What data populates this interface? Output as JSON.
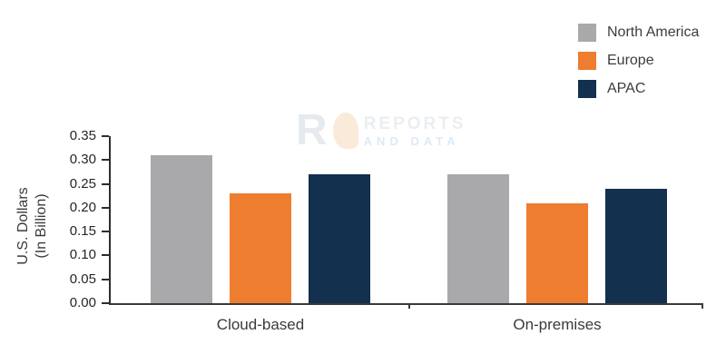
{
  "chart_data": {
    "type": "bar",
    "categories": [
      "Cloud-based",
      "On-premises"
    ],
    "series": [
      {
        "name": "North America",
        "color": "#a9a9ab",
        "values": [
          0.31,
          0.27
        ]
      },
      {
        "name": "Europe",
        "color": "#ee7d2f",
        "values": [
          0.23,
          0.21
        ]
      },
      {
        "name": "APAC",
        "color": "#13304e",
        "values": [
          0.27,
          0.24
        ]
      }
    ],
    "title": "",
    "xlabel": "",
    "ylabel_lines": [
      "U.S. Dollars",
      "(In Billion)"
    ],
    "ylim": [
      0,
      0.35
    ],
    "ytick_step": 0.05,
    "ytick_labels": [
      "0.00",
      "0.05",
      "0.10",
      "0.15",
      "0.20",
      "0.25",
      "0.30",
      "0.35"
    ],
    "grid": false,
    "legend_position": "top-right"
  },
  "watermark": {
    "logo_letter": "R",
    "line1": "REPORTS",
    "line2": "AND DATA"
  }
}
